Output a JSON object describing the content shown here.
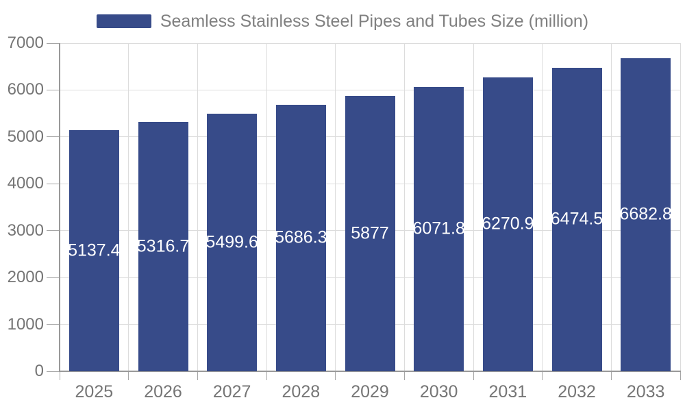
{
  "legend": {
    "label": "Seamless Stainless Steel Pipes and Tubes Size (million)"
  },
  "chart_data": {
    "type": "bar",
    "title": "Seamless Stainless Steel Pipes and Tubes Size (million)",
    "categories": [
      "2025",
      "2026",
      "2027",
      "2028",
      "2029",
      "2030",
      "2031",
      "2032",
      "2033"
    ],
    "values": [
      5137.4,
      5316.7,
      5499.6,
      5686.3,
      5877,
      6071.8,
      6270.9,
      6474.5,
      6682.8
    ],
    "value_labels": [
      "5137.4",
      "5316.7",
      "5499.6",
      "5686.3",
      "5877",
      "6071.8",
      "6270.9",
      "6474.5",
      "6682.8"
    ],
    "xlabel": "",
    "ylabel": "",
    "ylim": [
      0,
      7000
    ],
    "y_ticks": [
      0,
      1000,
      2000,
      3000,
      4000,
      5000,
      6000,
      7000
    ],
    "grid": true,
    "legend_position": "top-center",
    "value_label_position": "inside-center",
    "colors": {
      "bar": "#374b89",
      "value_label": "#ffffff",
      "gridline": "#dcdcdc",
      "axis_line": "#999999",
      "tick_mark": "#a6a6a6",
      "tick_label": "#757575",
      "legend_text": "#808080",
      "background": "#ffffff"
    }
  }
}
